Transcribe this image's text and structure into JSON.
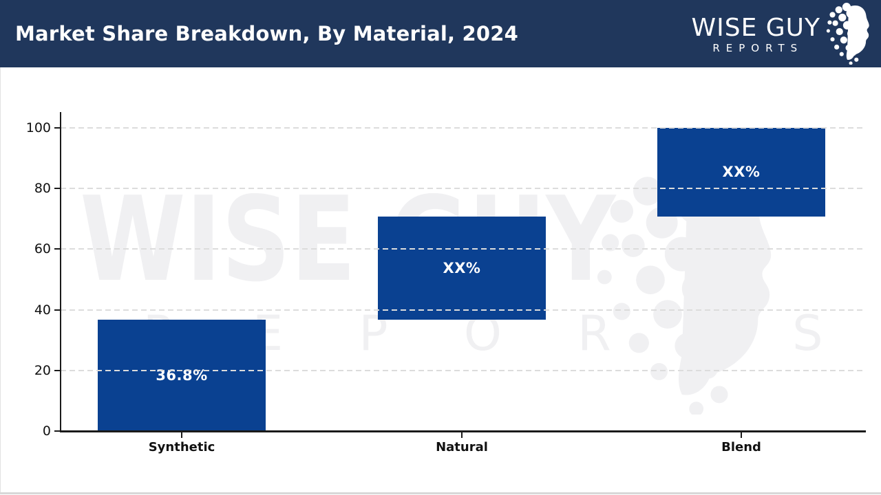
{
  "header": {
    "title": "Market Share Breakdown, By Material, 2024",
    "logo": {
      "name": "WISE GUY",
      "sub": "REPORTS"
    }
  },
  "watermark": {
    "name": "WISE GUY",
    "sub": "R E P O R T S"
  },
  "colors": {
    "header_bg": "#20375c",
    "chart_bg": "#ffffff",
    "bar_fill": "#0a4191",
    "bar_label": "#ffffff",
    "grid_line": "#dcdcdc",
    "axis_line": "#1a1a1a",
    "tick_text": "#111111",
    "watermark": "#f0f0f2"
  },
  "chart_data": {
    "type": "bar",
    "variant": "floating-waterfall",
    "title": "Market Share Breakdown, By Material, 2024",
    "categories": [
      "Synthetic",
      "Natural",
      "Blend"
    ],
    "bar_ranges": [
      [
        0,
        36.8
      ],
      [
        36.8,
        70.8
      ],
      [
        70.8,
        100
      ]
    ],
    "values": [
      36.8,
      34.0,
      29.2
    ],
    "bar_labels": [
      "36.8%",
      "XX%",
      "XX%"
    ],
    "xlabel": "",
    "ylabel": "",
    "ylim": [
      0,
      100
    ],
    "yticks": [
      0,
      20,
      40,
      60,
      80,
      100
    ],
    "grid": "horizontal-dashed",
    "legend": false
  }
}
